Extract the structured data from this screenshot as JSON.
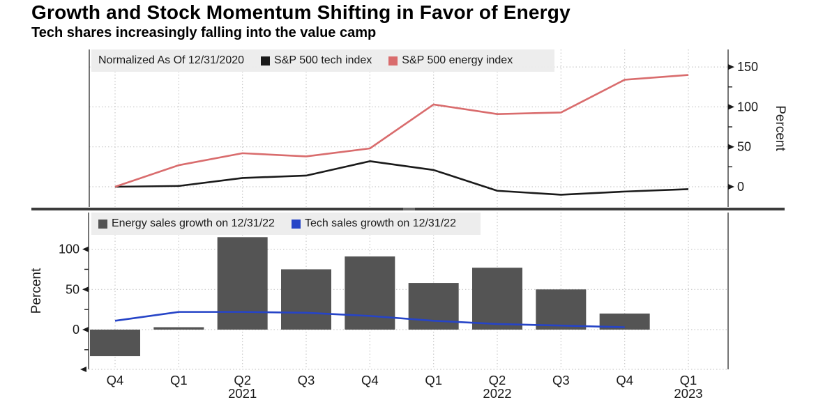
{
  "header": {
    "title": "Growth and Stock Momentum Shifting in Favor of Energy",
    "subtitle": "Tech shares increasingly falling into the value camp"
  },
  "colors": {
    "tech_index_line": "#1a1a1a",
    "energy_index_line": "#d96c6d",
    "energy_sales_bar": "#545454",
    "tech_sales_line": "#2644c7",
    "legend_background": "#ececec",
    "gridline": "#c9c9c9",
    "axis": "#3a3a3a",
    "divider": "#3c3c3c"
  },
  "x_axis": {
    "quarter_labels": [
      "Q4",
      "Q1",
      "Q2",
      "Q3",
      "Q4",
      "Q1",
      "Q2",
      "Q3",
      "Q4",
      "Q1"
    ],
    "year_labels": [
      {
        "text": "2021",
        "index": 2
      },
      {
        "text": "2022",
        "index": 6
      },
      {
        "text": "2023",
        "index": 9
      }
    ]
  },
  "chart_data": [
    {
      "type": "line",
      "panel": "top",
      "note": "Normalized As Of 12/31/2020",
      "categories": [
        "Q4 2020",
        "Q1 2021",
        "Q2 2021",
        "Q3 2021",
        "Q4 2021",
        "Q1 2022",
        "Q2 2022",
        "Q3 2022",
        "Q4 2022",
        "Q1 2023"
      ],
      "series": [
        {
          "name": "S&P 500 tech index",
          "color": "#1a1a1a",
          "values": [
            0,
            1,
            11,
            14,
            32,
            21,
            -5,
            -10,
            -6,
            -3
          ]
        },
        {
          "name": "S&P 500 energy index",
          "color": "#d96c6d",
          "values": [
            0,
            27,
            42,
            38,
            48,
            103,
            91,
            93,
            134,
            140
          ]
        }
      ],
      "ylabel": "Percent",
      "yticks": [
        0,
        50,
        100,
        150
      ],
      "yticks_minor": [
        25,
        75,
        125
      ],
      "ylim": [
        -25.3,
        171.9
      ],
      "y_axis_side": "right",
      "grid": true,
      "legend_position": "top-left"
    },
    {
      "type": "bar",
      "panel": "bottom",
      "categories": [
        "Q4 2020",
        "Q1 2021",
        "Q2 2021",
        "Q3 2021",
        "Q4 2021",
        "Q1 2022",
        "Q2 2022",
        "Q3 2022",
        "Q4 2022",
        "Q1 2023"
      ],
      "series": [
        {
          "name": "Energy sales growth on 12/31/22",
          "kind": "bar",
          "color": "#545454",
          "values": [
            -33,
            3,
            115,
            75,
            91,
            58,
            77,
            50,
            20,
            null
          ]
        },
        {
          "name": "Tech sales growth on 12/31/22",
          "kind": "line",
          "color": "#2644c7",
          "values": [
            11,
            22,
            22,
            21,
            17,
            11,
            7,
            5,
            3,
            null
          ]
        }
      ],
      "ylabel": "Percent",
      "yticks": [
        0,
        50,
        100
      ],
      "yticks_minor": [
        -25,
        25,
        75
      ],
      "ylim": [
        -49.4,
        145.6
      ],
      "y_axis_side": "left",
      "grid": true,
      "legend_position": "top-left"
    }
  ]
}
